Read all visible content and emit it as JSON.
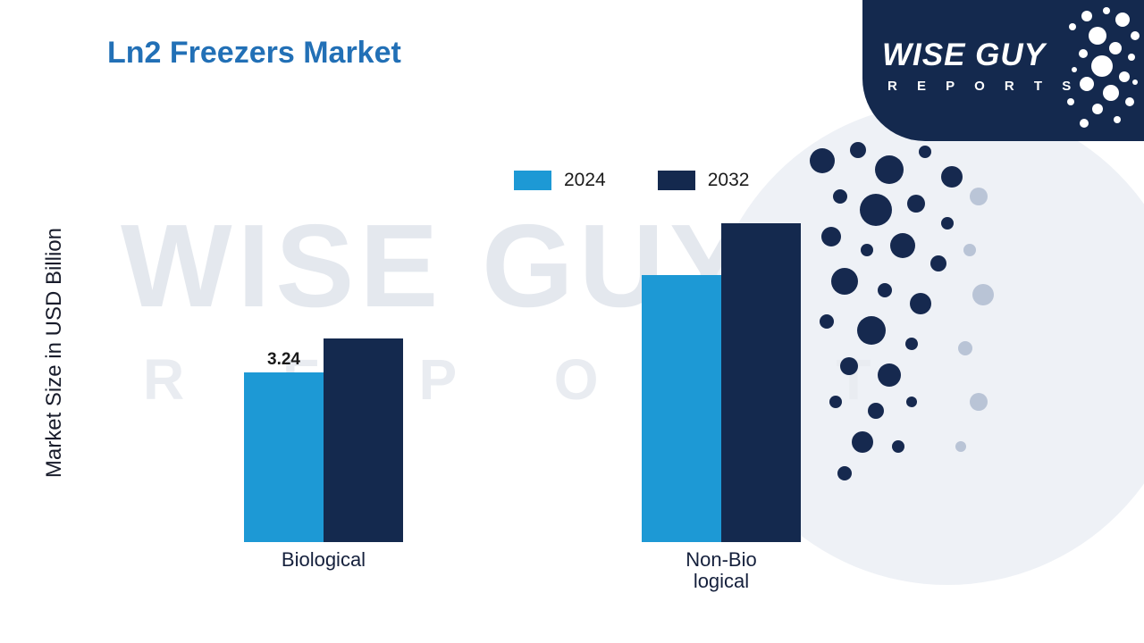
{
  "page": {
    "title": "Ln2 Freezers Market"
  },
  "logo": {
    "line1": "WISE GUY",
    "line2": "R E P O R T S"
  },
  "watermark": {
    "line1": "WISE GUY",
    "line2": "R E P O R T"
  },
  "colors": {
    "title_blue": "#2270b6",
    "bar_2024": "#1d99d5",
    "bar_2032": "#14294e",
    "logo_navy": "#14294e",
    "watermark_gray": "#e4e8ee"
  },
  "chart_data": {
    "type": "bar",
    "categories": [
      "Biological",
      "Non-Bio logical"
    ],
    "series": [
      {
        "name": "2024",
        "color": "#1d99d5",
        "values": [
          3.24,
          5.1
        ],
        "labels": [
          "3.24",
          ""
        ]
      },
      {
        "name": "2032",
        "color": "#14294e",
        "values": [
          3.9,
          6.1
        ],
        "labels": [
          "",
          ""
        ]
      }
    ],
    "title": "Ln2 Freezers Market",
    "xlabel": "",
    "ylabel": "Market Size in USD Billion",
    "ylim": [
      0,
      7
    ],
    "grid": false,
    "legend_position": "top"
  }
}
